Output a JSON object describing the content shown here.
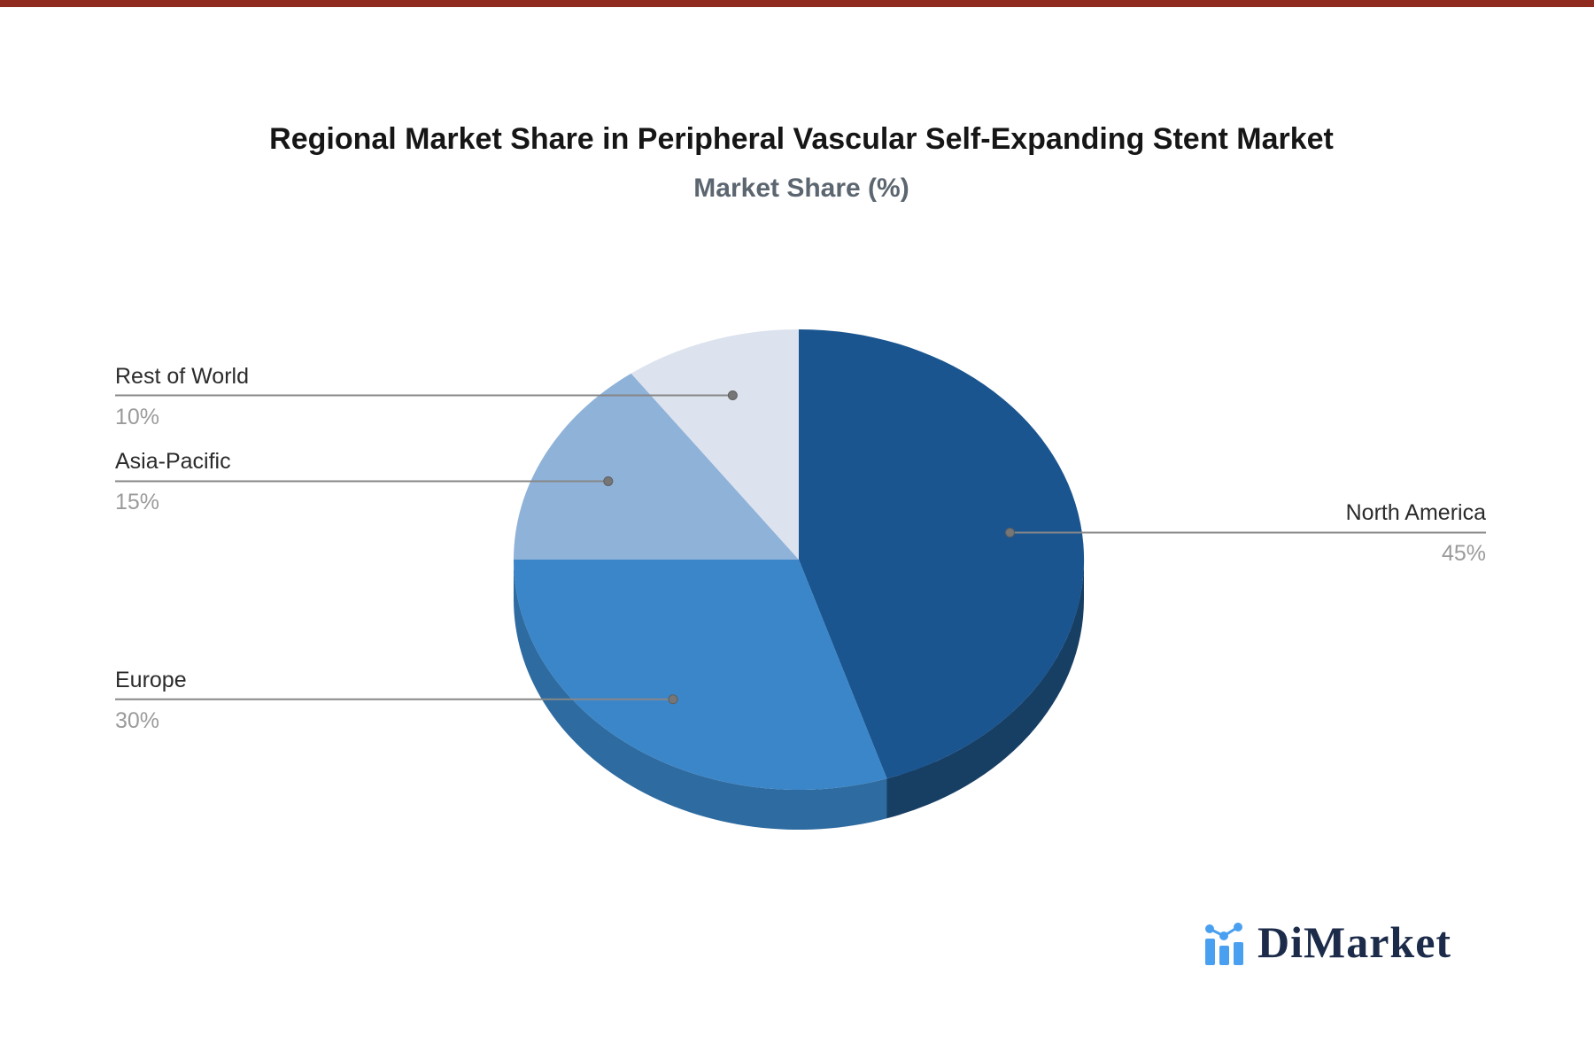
{
  "page": {
    "background": "#ffffff",
    "accent_bar_color": "#8f2a1e"
  },
  "header": {
    "title": "Regional Market Share in Peripheral Vascular Self-Expanding Stent Market",
    "subtitle": "Market Share (%)"
  },
  "chart_data": {
    "type": "pie",
    "title": "Regional Market Share in Peripheral Vascular Self-Expanding Stent Market",
    "subtitle": "Market Share (%)",
    "unit": "%",
    "categories": [
      "North America",
      "Europe",
      "Asia-Pacific",
      "Rest of World"
    ],
    "values": [
      45,
      30,
      15,
      10
    ],
    "slices": [
      {
        "label": "North America",
        "value": 45,
        "display": "45%",
        "color": "#1a5590",
        "side_color": "#173e63",
        "label_side": "right"
      },
      {
        "label": "Europe",
        "value": 30,
        "display": "30%",
        "color": "#3b86c8",
        "side_color": "#2e6ba0",
        "label_side": "left"
      },
      {
        "label": "Asia-Pacific",
        "value": 15,
        "display": "15%",
        "color": "#8fb2d9",
        "label_side": "left"
      },
      {
        "label": "Rest of World",
        "value": 10,
        "display": "10%",
        "color": "#dce3ee",
        "label_side": "left"
      }
    ],
    "style": {
      "effect": "3d",
      "start_angle_deg": 0,
      "clockwise": true,
      "leader_line_color": "#878787",
      "leader_dot_color": "#767676",
      "label_color": "#2b2b2b",
      "value_color": "#9b9b9b"
    }
  },
  "branding": {
    "logo_text": "DiMarket",
    "logo_icon": "bar-chart-icon",
    "logo_text_color": "#1c2b4a",
    "logo_icon_color": "#4aa0f0"
  }
}
